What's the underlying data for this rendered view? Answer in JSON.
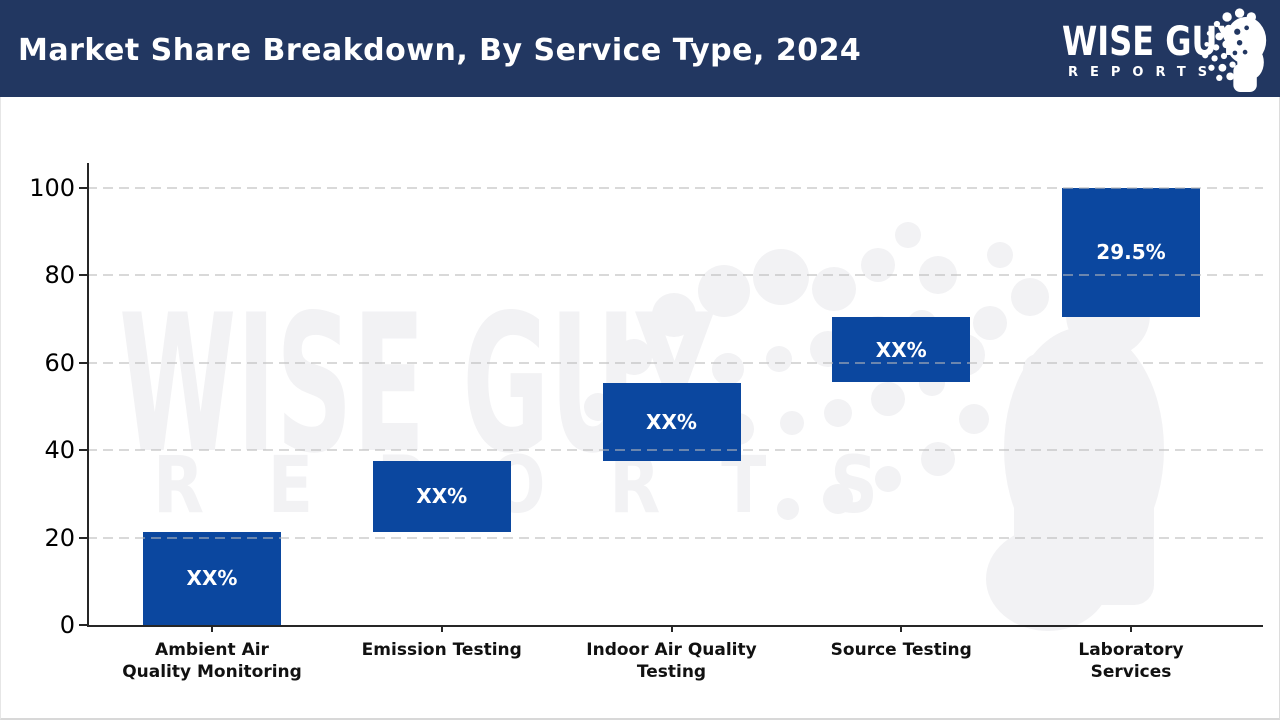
{
  "header": {
    "title": "Market Share Breakdown, By Service Type, 2024",
    "logo": {
      "line1": "WISE GUY",
      "line2": "REPORTS"
    }
  },
  "watermark": {
    "line1": "WISE GUY",
    "line2": "REPORTS"
  },
  "theme": {
    "header_bg": "#223761",
    "page_bg": "#ffffff",
    "watermark_gray": "#f2f2f4",
    "bottom_border": "#d8d8d8"
  },
  "chart_data": {
    "type": "bar",
    "variant": "waterfall",
    "title": "Market Share Breakdown, By Service Type, 2024",
    "categories": [
      "Ambient Air Quality Monitoring",
      "Emission Testing",
      "Indoor Air Quality Testing",
      "Source Testing",
      "Laboratory Services"
    ],
    "category_label_lines": [
      [
        "Ambient Air",
        "Quality Monitoring"
      ],
      [
        "Emission Testing"
      ],
      [
        "Indoor Air Quality",
        "Testing"
      ],
      [
        "Source Testing"
      ],
      [
        "Laboratory",
        "Services"
      ]
    ],
    "segments": [
      {
        "category": "Ambient Air Quality Monitoring",
        "start": 0,
        "end": 21.3,
        "height": 21.3,
        "label": "XX%"
      },
      {
        "category": "Emission Testing",
        "start": 21.3,
        "end": 37.6,
        "height": 16.3,
        "label": "XX%"
      },
      {
        "category": "Indoor Air Quality Testing",
        "start": 37.6,
        "end": 55.3,
        "height": 17.7,
        "label": "XX%"
      },
      {
        "category": "Source Testing",
        "start": 55.5,
        "end": 70.4,
        "height": 14.9,
        "label": "XX%"
      },
      {
        "category": "Laboratory Services",
        "start": 70.5,
        "end": 100,
        "height": 29.5,
        "label": "29.5%"
      }
    ],
    "ylim": [
      0,
      105
    ],
    "yticks": [
      0,
      20,
      40,
      60,
      80,
      100
    ],
    "xlabel": "",
    "ylabel": "",
    "grid": "horizontal-dashed",
    "legend_position": "none",
    "colors": {
      "bar": "#0b479f",
      "bar_label": "#ffffff",
      "grid": "#d9d9d9",
      "axis": "#262626",
      "tick_label": "#000000",
      "category_label": "#111111"
    }
  }
}
